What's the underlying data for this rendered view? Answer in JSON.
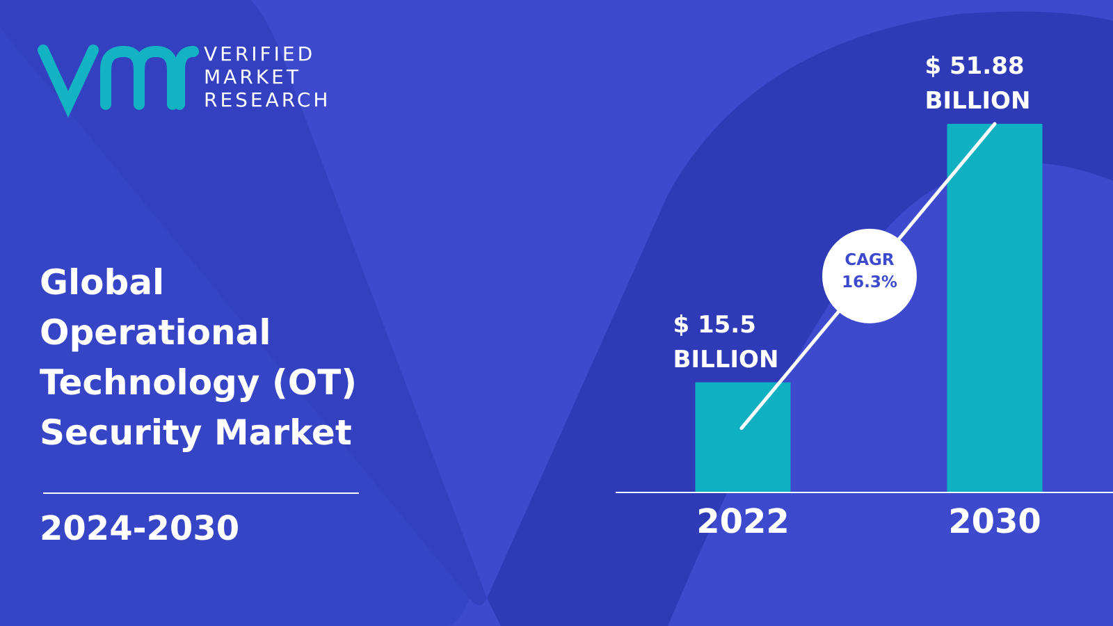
{
  "brand": {
    "line1": "VERIFIED",
    "line2": "MARKET",
    "line3": "RESEARCH"
  },
  "chart_data": {
    "type": "bar",
    "title": "Global Operational Technology (OT) Security Market",
    "subtitle": "2024-2030",
    "categories": [
      "2022",
      "2030"
    ],
    "values": [
      15.5,
      51.88
    ],
    "value_labels": [
      "$ 15.5 BILLION",
      "$ 51.88 BILLION"
    ],
    "color": "#0fb0c2",
    "cagr_label": "CAGR",
    "cagr": {
      "value": 16.3,
      "label": "16.3%"
    }
  }
}
